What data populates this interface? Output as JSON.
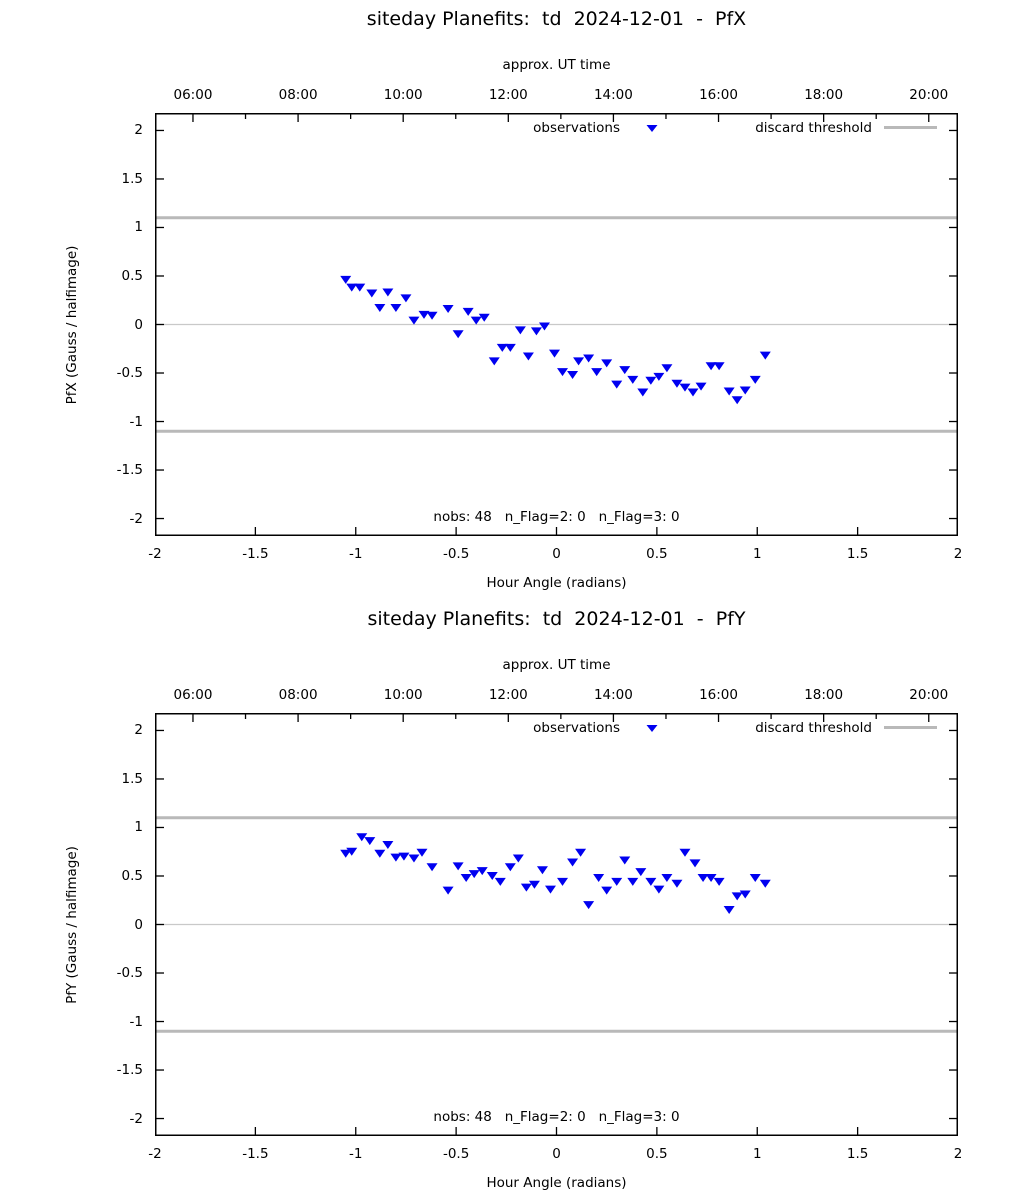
{
  "page": {
    "background": "#ffffff"
  },
  "chart_data": [
    {
      "type": "scatter",
      "title": "siteday Planefits:  td  2024-12-01  -  PfX",
      "top_axis": {
        "label": "approx. UT time",
        "transit_hour": 12.917,
        "radians_per_hour": 0.2618,
        "major_ticks": [
          {
            "hour": 6,
            "label": "06:00"
          },
          {
            "hour": 8,
            "label": "08:00"
          },
          {
            "hour": 10,
            "label": "10:00"
          },
          {
            "hour": 12,
            "label": "12:00"
          },
          {
            "hour": 14,
            "label": "14:00"
          },
          {
            "hour": 16,
            "label": "16:00"
          },
          {
            "hour": 18,
            "label": "18:00"
          },
          {
            "hour": 20,
            "label": "20:00"
          }
        ],
        "minor_tick_hours": [
          7,
          9,
          11,
          13,
          15,
          17,
          19
        ]
      },
      "x_axis": {
        "label": "Hour Angle (radians)",
        "range": [
          -2,
          2
        ],
        "ticks": [
          {
            "v": -2,
            "label": "-2"
          },
          {
            "v": -1.5,
            "label": "-1.5"
          },
          {
            "v": -1,
            "label": "-1"
          },
          {
            "v": -0.5,
            "label": "-0.5"
          },
          {
            "v": 0,
            "label": "0"
          },
          {
            "v": 0.5,
            "label": "0.5"
          },
          {
            "v": 1,
            "label": "1"
          },
          {
            "v": 1.5,
            "label": "1.5"
          },
          {
            "v": 2,
            "label": "2"
          }
        ]
      },
      "y_axis": {
        "label": "PfX (Gauss / halfimage)",
        "range": [
          -2.18,
          2.18
        ],
        "ticks": [
          {
            "v": 2,
            "label": "2"
          },
          {
            "v": 1.5,
            "label": "1.5"
          },
          {
            "v": 1,
            "label": "1"
          },
          {
            "v": 0.5,
            "label": "0.5"
          },
          {
            "v": 0,
            "label": "0"
          },
          {
            "v": -0.5,
            "label": "-0.5"
          },
          {
            "v": -1,
            "label": "-1"
          },
          {
            "v": -1.5,
            "label": "-1.5"
          },
          {
            "v": -2,
            "label": "-2"
          }
        ]
      },
      "legend": [
        {
          "label": "observations",
          "swatch": "triangle-down-marker"
        },
        {
          "label": "discard threshold",
          "swatch": "gray-line"
        }
      ],
      "thresholds": [
        1.1,
        -1.1
      ],
      "zero_line": 0,
      "annotation": "nobs: 48   n_Flag=2: 0   n_Flag=3: 0",
      "nobs": 48,
      "n_flag2": 0,
      "n_flag3": 0,
      "colors": {
        "marker": "#0000f0",
        "threshold": "#b9b9b9",
        "zero_line": "#c9c9c9",
        "border": "#000000"
      },
      "points": [
        [
          -1.05,
          0.47
        ],
        [
          -1.02,
          0.39
        ],
        [
          -0.98,
          0.39
        ],
        [
          -0.92,
          0.33
        ],
        [
          -0.88,
          0.18
        ],
        [
          -0.84,
          0.34
        ],
        [
          -0.8,
          0.18
        ],
        [
          -0.75,
          0.28
        ],
        [
          -0.71,
          0.05
        ],
        [
          -0.66,
          0.11
        ],
        [
          -0.62,
          0.1
        ],
        [
          -0.54,
          0.17
        ],
        [
          -0.49,
          -0.09
        ],
        [
          -0.44,
          0.14
        ],
        [
          -0.4,
          0.05
        ],
        [
          -0.36,
          0.08
        ],
        [
          -0.31,
          -0.37
        ],
        [
          -0.27,
          -0.23
        ],
        [
          -0.23,
          -0.23
        ],
        [
          -0.18,
          -0.05
        ],
        [
          -0.14,
          -0.32
        ],
        [
          -0.1,
          -0.06
        ],
        [
          -0.06,
          -0.01
        ],
        [
          -0.01,
          -0.29
        ],
        [
          0.03,
          -0.48
        ],
        [
          0.08,
          -0.51
        ],
        [
          0.11,
          -0.37
        ],
        [
          0.16,
          -0.34
        ],
        [
          0.2,
          -0.48
        ],
        [
          0.25,
          -0.39
        ],
        [
          0.3,
          -0.61
        ],
        [
          0.34,
          -0.46
        ],
        [
          0.38,
          -0.56
        ],
        [
          0.43,
          -0.69
        ],
        [
          0.47,
          -0.57
        ],
        [
          0.51,
          -0.53
        ],
        [
          0.55,
          -0.44
        ],
        [
          0.6,
          -0.6
        ],
        [
          0.64,
          -0.64
        ],
        [
          0.68,
          -0.69
        ],
        [
          0.72,
          -0.63
        ],
        [
          0.77,
          -0.42
        ],
        [
          0.81,
          -0.42
        ],
        [
          0.86,
          -0.68
        ],
        [
          0.9,
          -0.77
        ],
        [
          0.94,
          -0.67
        ],
        [
          0.99,
          -0.56
        ],
        [
          1.04,
          -0.31
        ]
      ]
    },
    {
      "type": "scatter",
      "title": "siteday Planefits:  td  2024-12-01  -  PfY",
      "top_axis": {
        "label": "approx. UT time",
        "transit_hour": 12.917,
        "radians_per_hour": 0.2618,
        "major_ticks": [
          {
            "hour": 6,
            "label": "06:00"
          },
          {
            "hour": 8,
            "label": "08:00"
          },
          {
            "hour": 10,
            "label": "10:00"
          },
          {
            "hour": 12,
            "label": "12:00"
          },
          {
            "hour": 14,
            "label": "14:00"
          },
          {
            "hour": 16,
            "label": "16:00"
          },
          {
            "hour": 18,
            "label": "18:00"
          },
          {
            "hour": 20,
            "label": "20:00"
          }
        ],
        "minor_tick_hours": [
          7,
          9,
          11,
          13,
          15,
          17,
          19
        ]
      },
      "x_axis": {
        "label": "Hour Angle (radians)",
        "range": [
          -2,
          2
        ],
        "ticks": [
          {
            "v": -2,
            "label": "-2"
          },
          {
            "v": -1.5,
            "label": "-1.5"
          },
          {
            "v": -1,
            "label": "-1"
          },
          {
            "v": -0.5,
            "label": "-0.5"
          },
          {
            "v": 0,
            "label": "0"
          },
          {
            "v": 0.5,
            "label": "0.5"
          },
          {
            "v": 1,
            "label": "1"
          },
          {
            "v": 1.5,
            "label": "1.5"
          },
          {
            "v": 2,
            "label": "2"
          }
        ]
      },
      "y_axis": {
        "label": "PfY (Gauss / halfimage)",
        "range": [
          -2.18,
          2.18
        ],
        "ticks": [
          {
            "v": 2,
            "label": "2"
          },
          {
            "v": 1.5,
            "label": "1.5"
          },
          {
            "v": 1,
            "label": "1"
          },
          {
            "v": 0.5,
            "label": "0.5"
          },
          {
            "v": 0,
            "label": "0"
          },
          {
            "v": -0.5,
            "label": "-0.5"
          },
          {
            "v": -1,
            "label": "-1"
          },
          {
            "v": -1.5,
            "label": "-1.5"
          },
          {
            "v": -2,
            "label": "-2"
          }
        ]
      },
      "legend": [
        {
          "label": "observations",
          "swatch": "triangle-down-marker"
        },
        {
          "label": "discard threshold",
          "swatch": "gray-line"
        }
      ],
      "thresholds": [
        1.1,
        -1.1
      ],
      "zero_line": 0,
      "annotation": "nobs: 48   n_Flag=2: 0   n_Flag=3: 0",
      "nobs": 48,
      "n_flag2": 0,
      "n_flag3": 0,
      "colors": {
        "marker": "#0000f0",
        "threshold": "#b9b9b9",
        "zero_line": "#c9c9c9",
        "border": "#000000"
      },
      "points": [
        [
          -1.05,
          0.74
        ],
        [
          -1.02,
          0.76
        ],
        [
          -0.97,
          0.91
        ],
        [
          -0.93,
          0.87
        ],
        [
          -0.88,
          0.74
        ],
        [
          -0.84,
          0.83
        ],
        [
          -0.8,
          0.7
        ],
        [
          -0.76,
          0.71
        ],
        [
          -0.71,
          0.69
        ],
        [
          -0.67,
          0.75
        ],
        [
          -0.62,
          0.6
        ],
        [
          -0.54,
          0.36
        ],
        [
          -0.49,
          0.61
        ],
        [
          -0.45,
          0.49
        ],
        [
          -0.41,
          0.53
        ],
        [
          -0.37,
          0.56
        ],
        [
          -0.32,
          0.51
        ],
        [
          -0.28,
          0.45
        ],
        [
          -0.23,
          0.6
        ],
        [
          -0.19,
          0.69
        ],
        [
          -0.15,
          0.39
        ],
        [
          -0.11,
          0.42
        ],
        [
          -0.07,
          0.57
        ],
        [
          -0.03,
          0.37
        ],
        [
          0.03,
          0.45
        ],
        [
          0.08,
          0.65
        ],
        [
          0.12,
          0.75
        ],
        [
          0.16,
          0.21
        ],
        [
          0.21,
          0.49
        ],
        [
          0.25,
          0.36
        ],
        [
          0.3,
          0.45
        ],
        [
          0.34,
          0.67
        ],
        [
          0.38,
          0.45
        ],
        [
          0.42,
          0.55
        ],
        [
          0.47,
          0.45
        ],
        [
          0.51,
          0.37
        ],
        [
          0.55,
          0.49
        ],
        [
          0.6,
          0.43
        ],
        [
          0.64,
          0.75
        ],
        [
          0.69,
          0.64
        ],
        [
          0.73,
          0.49
        ],
        [
          0.77,
          0.49
        ],
        [
          0.81,
          0.45
        ],
        [
          0.86,
          0.16
        ],
        [
          0.9,
          0.3
        ],
        [
          0.94,
          0.32
        ],
        [
          0.99,
          0.49
        ],
        [
          1.04,
          0.43
        ]
      ]
    }
  ]
}
